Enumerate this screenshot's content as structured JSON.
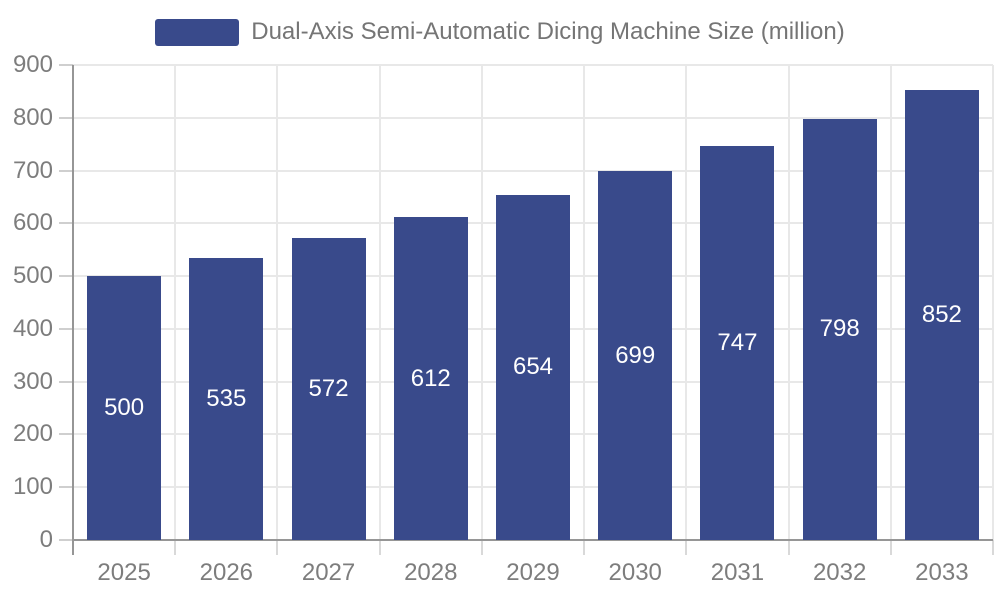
{
  "legend": {
    "label": "Dual-Axis Semi-Automatic Dicing Machine Size (million)"
  },
  "chart_data": {
    "type": "bar",
    "title": "Dual-Axis Semi-Automatic Dicing Machine Size (million)",
    "categories": [
      "2025",
      "2026",
      "2027",
      "2028",
      "2029",
      "2030",
      "2031",
      "2032",
      "2033"
    ],
    "values": [
      500,
      535,
      572,
      612,
      654,
      699,
      747,
      798,
      852
    ],
    "xlabel": "",
    "ylabel": "",
    "ylim": [
      0,
      900
    ],
    "ytick_step": 100,
    "grid": true,
    "legend_position": "top",
    "value_label_position": "inside-center",
    "colors": {
      "bar": "#394A8B",
      "value_label": "#FFFFFF",
      "axis_line": "#969696",
      "y_tick_line": "#CFCFCF",
      "x_tick_line": "#D9D9D9",
      "gridline": "#E8E8E8",
      "axis_label": "#7D7D7D",
      "legend_text": "#757575",
      "background": "#FFFFFF"
    }
  }
}
